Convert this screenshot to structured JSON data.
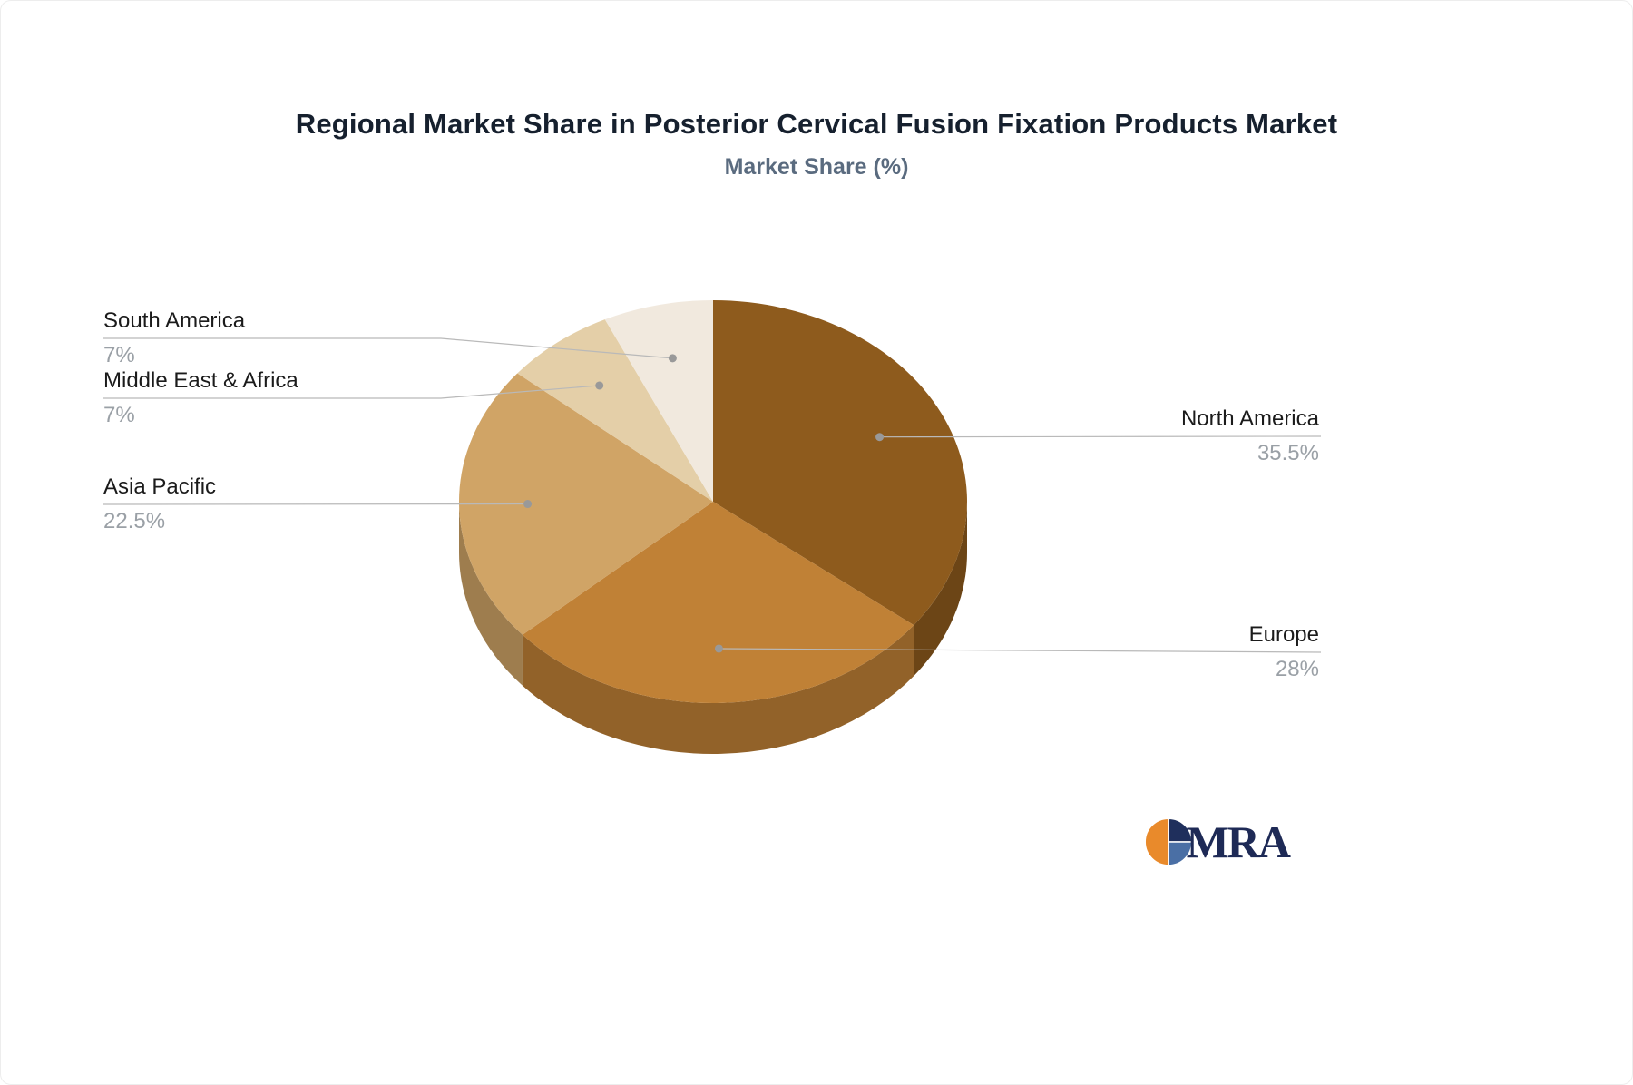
{
  "page": {
    "title": "Regional Market Share in Posterior Cervical Fusion Fixation Products Market",
    "subtitle": "Market Share (%)"
  },
  "chart_data": {
    "type": "pie",
    "style": "3d",
    "title": "Regional Market Share in Posterior Cervical Fusion Fixation Products Market",
    "subtitle": "Market Share (%)",
    "unit": "%",
    "direction": "clockwise",
    "start_angle_deg": 0,
    "legend_position": "none",
    "labels": [
      "North America",
      "Europe",
      "Asia Pacific",
      "Middle East & Africa",
      "South America"
    ],
    "values": [
      35.5,
      28,
      22.5,
      7,
      7
    ],
    "display_values": [
      "35.5%",
      "28%",
      "22.5%",
      "7%",
      "7%"
    ],
    "colors": [
      "#8e5b1d",
      "#c08136",
      "#d0a466",
      "#e4cfa8",
      "#f1e9de"
    ]
  },
  "logo": {
    "text": "MRA",
    "accent_orange": "#e98a2b",
    "navy": "#1f2f5c",
    "steel_blue": "#4a6fa5"
  }
}
